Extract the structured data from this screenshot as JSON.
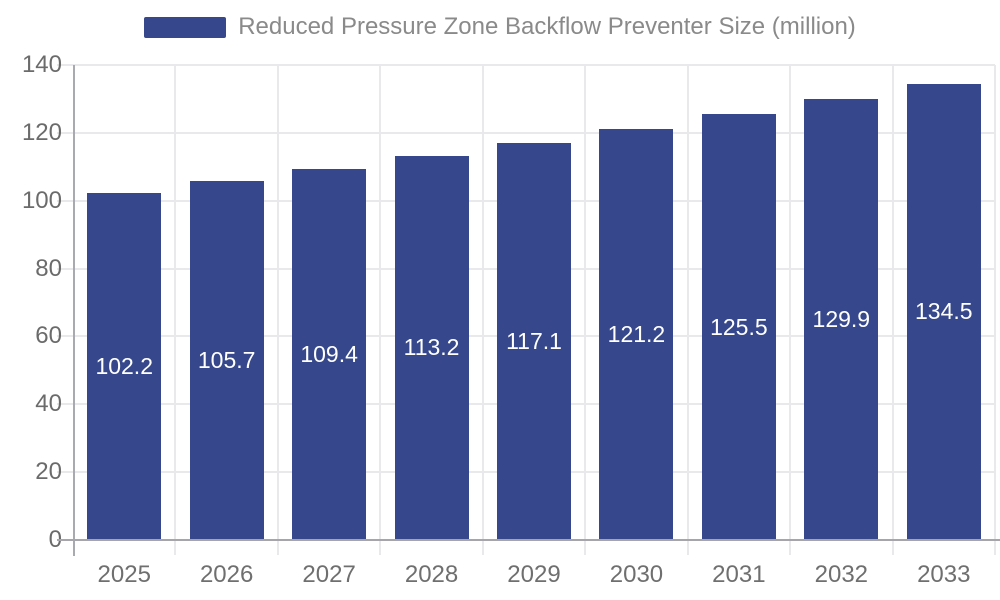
{
  "chart_data": {
    "type": "bar",
    "title": "Reduced Pressure Zone Backflow Preventer Size (million)",
    "legend": {
      "label": "Reduced Pressure Zone Backflow Preventer Size (million)",
      "position": "top"
    },
    "categories": [
      "2025",
      "2026",
      "2027",
      "2028",
      "2029",
      "2030",
      "2031",
      "2032",
      "2033"
    ],
    "values": [
      102.2,
      105.7,
      109.4,
      113.2,
      117.1,
      121.2,
      125.5,
      129.9,
      134.5
    ],
    "value_labels": [
      "102.2",
      "105.7",
      "109.4",
      "113.2",
      "117.1",
      "121.2",
      "125.5",
      "129.9",
      "134.5"
    ],
    "xlabel": "",
    "ylabel": "",
    "ylim": [
      0,
      140
    ],
    "yticks": [
      0,
      20,
      40,
      60,
      80,
      100,
      120,
      140
    ],
    "ytick_labels": [
      "0",
      "20",
      "40",
      "60",
      "80",
      "100",
      "120",
      "140"
    ],
    "grid": true,
    "colors": {
      "bar": "#36488B",
      "value_text": "#ffffff",
      "axis_text": "#6b6b6b",
      "legend_text": "#8a8a8a",
      "gridline": "#e9e9ec",
      "axis_line": "#a6a6aa",
      "background": "#ffffff"
    }
  }
}
